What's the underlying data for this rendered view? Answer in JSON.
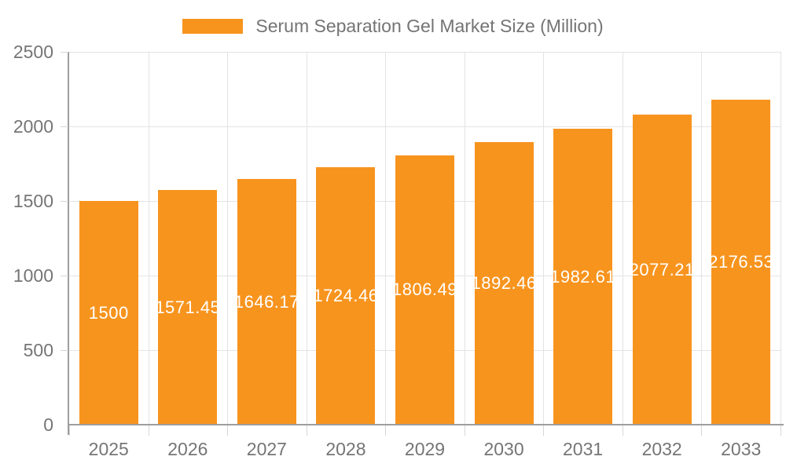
{
  "chart_data": {
    "type": "bar",
    "title": "Serum Separation Gel Market Size (Million)",
    "legend": [
      "Serum Separation Gel Market Size (Million)"
    ],
    "legend_position": "top",
    "categories": [
      "2025",
      "2026",
      "2027",
      "2028",
      "2029",
      "2030",
      "2031",
      "2032",
      "2033"
    ],
    "values": [
      1500,
      1571.45,
      1646.17,
      1724.46,
      1806.49,
      1892.46,
      1982.61,
      2077.21,
      2176.53
    ],
    "bar_labels": [
      "1500",
      "1571.45",
      "1646.17",
      "1724.46",
      "1806.49",
      "1892.46",
      "1982.61",
      "2077.21",
      "2176.53"
    ],
    "xlabel": "",
    "ylabel": "",
    "ylim": [
      0,
      2500
    ],
    "yticks": [
      0,
      500,
      1000,
      1500,
      2000,
      2500
    ],
    "grid": true,
    "colors": {
      "bar": "#f7941e",
      "bar_label": "#ffffff",
      "axis": "#9e9e9e",
      "tick": "#d6d6d6",
      "grid": "#e3e3e3",
      "tick_label": "#757575",
      "legend_text": "#747474",
      "background": "#ffffff"
    }
  }
}
